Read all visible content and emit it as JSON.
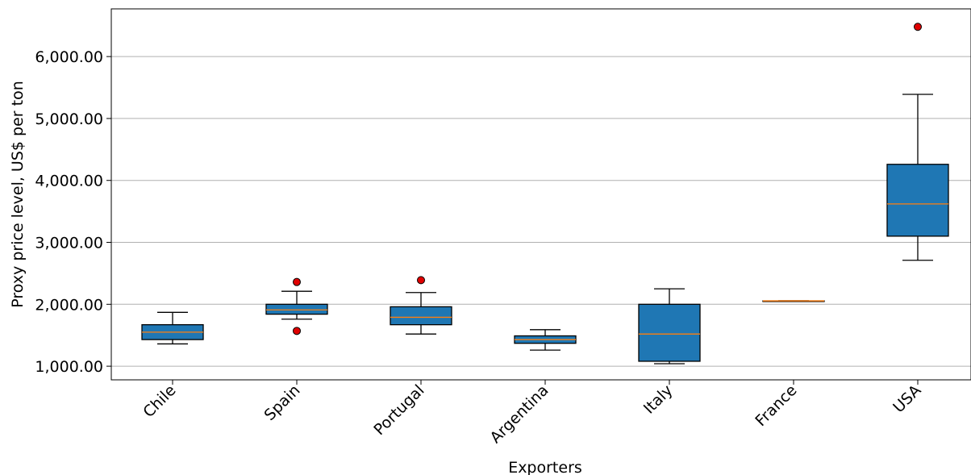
{
  "chart_data": {
    "type": "box",
    "xlabel": "Exporters",
    "ylabel": "Proxy price level, US$ per ton",
    "ylim": [
      780,
      6770
    ],
    "y_ticks": [
      1000,
      2000,
      3000,
      4000,
      5000,
      6000
    ],
    "y_tick_labels": [
      "1,000.00",
      "2,000.00",
      "3,000.00",
      "4,000.00",
      "5,000.00",
      "6,000.00"
    ],
    "grid": "horizontal",
    "box_color": "#1f77b4",
    "median_color": "#ff7f0e",
    "outlier_color": "#e00000",
    "categories": [
      "Chile",
      "Spain",
      "Portugal",
      "Argentina",
      "Italy",
      "France",
      "USA"
    ],
    "boxes": [
      {
        "label": "Chile",
        "whisker_low": 1360,
        "q1": 1430,
        "median": 1550,
        "q3": 1670,
        "whisker_high": 1870,
        "outliers": []
      },
      {
        "label": "Spain",
        "whisker_low": 1760,
        "q1": 1840,
        "median": 1910,
        "q3": 2000,
        "whisker_high": 2210,
        "outliers": [
          2360,
          1570
        ]
      },
      {
        "label": "Portugal",
        "whisker_low": 1520,
        "q1": 1670,
        "median": 1790,
        "q3": 1960,
        "whisker_high": 2190,
        "outliers": [
          2390
        ]
      },
      {
        "label": "Argentina",
        "whisker_low": 1260,
        "q1": 1370,
        "median": 1430,
        "q3": 1490,
        "whisker_high": 1590,
        "outliers": []
      },
      {
        "label": "Italy",
        "whisker_low": 1040,
        "q1": 1080,
        "median": 1520,
        "q3": 2000,
        "whisker_high": 2250,
        "outliers": []
      },
      {
        "label": "France",
        "whisker_low": 2055,
        "q1": 2055,
        "median": 2055,
        "q3": 2055,
        "whisker_high": 2055,
        "outliers": []
      },
      {
        "label": "USA",
        "whisker_low": 2710,
        "q1": 3100,
        "median": 3620,
        "q3": 4260,
        "whisker_high": 5390,
        "outliers": [
          6480
        ]
      }
    ]
  }
}
